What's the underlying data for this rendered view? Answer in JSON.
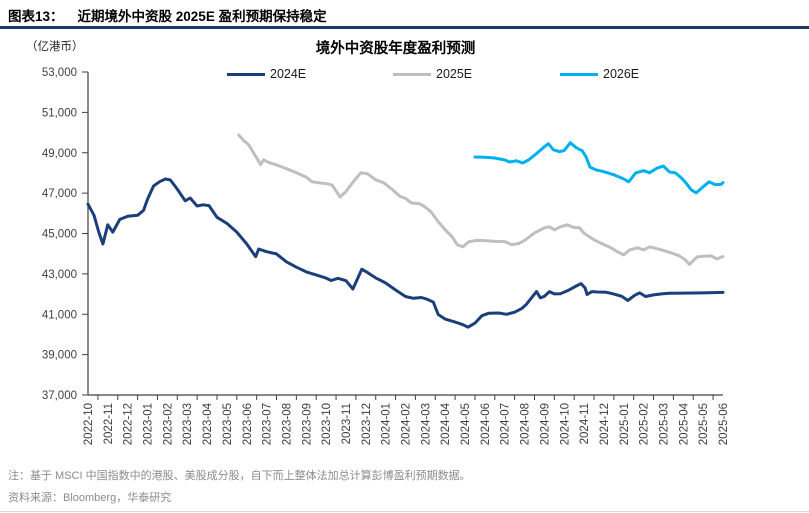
{
  "header": {
    "figure_label": "图表13：",
    "title": "近期境外中资股 2025E 盈利预期保持稳定"
  },
  "chart_data": {
    "type": "line",
    "title": "境外中资股年度盈利预测",
    "unit_label": "（亿港币）",
    "ylim": [
      37000,
      53000
    ],
    "y_ticks": [
      53000,
      51000,
      49000,
      47000,
      45000,
      43000,
      41000,
      39000,
      37000
    ],
    "x_labels": [
      "2022-10",
      "2022-11",
      "2022-12",
      "2023-01",
      "2023-02",
      "2023-03",
      "2023-04",
      "2023-05",
      "2023-06",
      "2023-07",
      "2023-08",
      "2023-09",
      "2023-10",
      "2023-11",
      "2023-12",
      "2024-01",
      "2024-02",
      "2024-03",
      "2024-04",
      "2024-05",
      "2024-06",
      "2024-07",
      "2024-08",
      "2024-09",
      "2024-10",
      "2024-11",
      "2024-12",
      "2025-01",
      "2025-02",
      "2025-03",
      "2025-04",
      "2025-05",
      "2025-06"
    ],
    "legend_position": "top",
    "grid": false,
    "axis_color": "#404040",
    "series": [
      {
        "name": "2024E",
        "color": "#1B3F7A",
        "points": [
          [
            0,
            46450
          ],
          [
            0.3,
            45900
          ],
          [
            0.55,
            45050
          ],
          [
            0.75,
            44480
          ],
          [
            1,
            45430
          ],
          [
            1.25,
            45070
          ],
          [
            1.6,
            45700
          ],
          [
            2,
            45850
          ],
          [
            2.5,
            45900
          ],
          [
            2.8,
            46150
          ],
          [
            3,
            46700
          ],
          [
            3.3,
            47350
          ],
          [
            3.6,
            47560
          ],
          [
            3.9,
            47700
          ],
          [
            4.15,
            47650
          ],
          [
            4.5,
            47200
          ],
          [
            4.9,
            46620
          ],
          [
            5.15,
            46760
          ],
          [
            5.5,
            46360
          ],
          [
            5.8,
            46420
          ],
          [
            6.1,
            46380
          ],
          [
            6.5,
            45800
          ],
          [
            7,
            45500
          ],
          [
            7.5,
            45070
          ],
          [
            8,
            44480
          ],
          [
            8.45,
            43850
          ],
          [
            8.6,
            44230
          ],
          [
            9,
            44100
          ],
          [
            9.5,
            43990
          ],
          [
            10,
            43600
          ],
          [
            10.5,
            43330
          ],
          [
            11,
            43100
          ],
          [
            11.5,
            42950
          ],
          [
            12,
            42790
          ],
          [
            12.25,
            42670
          ],
          [
            12.6,
            42780
          ],
          [
            13,
            42660
          ],
          [
            13.35,
            42250
          ],
          [
            13.8,
            43230
          ],
          [
            14.1,
            43060
          ],
          [
            14.5,
            42800
          ],
          [
            15,
            42550
          ],
          [
            15.5,
            42200
          ],
          [
            16,
            41880
          ],
          [
            16.4,
            41790
          ],
          [
            16.8,
            41830
          ],
          [
            17.1,
            41740
          ],
          [
            17.4,
            41600
          ],
          [
            17.65,
            40990
          ],
          [
            18,
            40760
          ],
          [
            18.5,
            40610
          ],
          [
            18.9,
            40480
          ],
          [
            19.15,
            40360
          ],
          [
            19.5,
            40560
          ],
          [
            19.85,
            40930
          ],
          [
            20.2,
            41050
          ],
          [
            20.7,
            41060
          ],
          [
            21.1,
            41000
          ],
          [
            21.5,
            41100
          ],
          [
            21.85,
            41280
          ],
          [
            22.1,
            41500
          ],
          [
            22.45,
            41940
          ],
          [
            22.6,
            42120
          ],
          [
            22.8,
            41810
          ],
          [
            23,
            41890
          ],
          [
            23.25,
            42120
          ],
          [
            23.5,
            42010
          ],
          [
            23.8,
            42020
          ],
          [
            24.2,
            42180
          ],
          [
            24.6,
            42400
          ],
          [
            24.85,
            42520
          ],
          [
            25.05,
            42300
          ],
          [
            25.15,
            41980
          ],
          [
            25.4,
            42120
          ],
          [
            25.7,
            42100
          ],
          [
            26.1,
            42090
          ],
          [
            26.5,
            42000
          ],
          [
            26.9,
            41890
          ],
          [
            27.2,
            41680
          ],
          [
            27.55,
            41940
          ],
          [
            27.8,
            42060
          ],
          [
            28.1,
            41880
          ],
          [
            28.5,
            41960
          ],
          [
            28.9,
            42010
          ],
          [
            29.3,
            42040
          ],
          [
            30,
            42050
          ],
          [
            31,
            42060
          ],
          [
            32,
            42080
          ]
        ]
      },
      {
        "name": "2025E",
        "color": "#BFBFBF",
        "points": [
          [
            7.6,
            49880
          ],
          [
            7.85,
            49600
          ],
          [
            8.1,
            49400
          ],
          [
            8.4,
            48900
          ],
          [
            8.7,
            48420
          ],
          [
            8.85,
            48650
          ],
          [
            9.1,
            48520
          ],
          [
            9.5,
            48400
          ],
          [
            10,
            48210
          ],
          [
            10.5,
            48010
          ],
          [
            11,
            47790
          ],
          [
            11.3,
            47560
          ],
          [
            11.7,
            47500
          ],
          [
            12,
            47470
          ],
          [
            12.3,
            47400
          ],
          [
            12.7,
            46810
          ],
          [
            13,
            47080
          ],
          [
            13.4,
            47600
          ],
          [
            13.75,
            48010
          ],
          [
            14.1,
            47950
          ],
          [
            14.5,
            47660
          ],
          [
            14.9,
            47510
          ],
          [
            15.3,
            47210
          ],
          [
            15.7,
            46860
          ],
          [
            16,
            46740
          ],
          [
            16.3,
            46510
          ],
          [
            16.7,
            46480
          ],
          [
            17,
            46310
          ],
          [
            17.3,
            46060
          ],
          [
            17.6,
            45640
          ],
          [
            18,
            45180
          ],
          [
            18.35,
            44840
          ],
          [
            18.6,
            44450
          ],
          [
            18.9,
            44340
          ],
          [
            19.2,
            44600
          ],
          [
            19.6,
            44660
          ],
          [
            20,
            44650
          ],
          [
            20.5,
            44610
          ],
          [
            21,
            44600
          ],
          [
            21.35,
            44450
          ],
          [
            21.7,
            44500
          ],
          [
            22,
            44660
          ],
          [
            22.5,
            45030
          ],
          [
            23,
            45280
          ],
          [
            23.25,
            45330
          ],
          [
            23.5,
            45180
          ],
          [
            23.8,
            45330
          ],
          [
            24.15,
            45430
          ],
          [
            24.5,
            45290
          ],
          [
            24.75,
            45290
          ],
          [
            25,
            45010
          ],
          [
            25.5,
            44690
          ],
          [
            26,
            44450
          ],
          [
            26.35,
            44290
          ],
          [
            26.7,
            44090
          ],
          [
            27,
            43940
          ],
          [
            27.3,
            44190
          ],
          [
            27.7,
            44290
          ],
          [
            28,
            44190
          ],
          [
            28.3,
            44340
          ],
          [
            28.7,
            44240
          ],
          [
            29,
            44160
          ],
          [
            29.4,
            44040
          ],
          [
            29.8,
            43890
          ],
          [
            30.1,
            43690
          ],
          [
            30.3,
            43470
          ],
          [
            30.7,
            43840
          ],
          [
            31.1,
            43880
          ],
          [
            31.4,
            43890
          ],
          [
            31.7,
            43740
          ],
          [
            32,
            43860
          ]
        ]
      },
      {
        "name": "2026E",
        "color": "#00B0F0",
        "points": [
          [
            19.5,
            48790
          ],
          [
            20,
            48780
          ],
          [
            20.5,
            48740
          ],
          [
            21,
            48640
          ],
          [
            21.25,
            48540
          ],
          [
            21.6,
            48600
          ],
          [
            21.9,
            48490
          ],
          [
            22.2,
            48640
          ],
          [
            22.6,
            48960
          ],
          [
            23,
            49300
          ],
          [
            23.2,
            49450
          ],
          [
            23.45,
            49150
          ],
          [
            23.75,
            49050
          ],
          [
            24,
            49110
          ],
          [
            24.3,
            49500
          ],
          [
            24.6,
            49250
          ],
          [
            24.9,
            49100
          ],
          [
            25.1,
            48800
          ],
          [
            25.3,
            48290
          ],
          [
            25.6,
            48150
          ],
          [
            26,
            48060
          ],
          [
            26.5,
            47910
          ],
          [
            27,
            47700
          ],
          [
            27.25,
            47560
          ],
          [
            27.6,
            48000
          ],
          [
            28,
            48110
          ],
          [
            28.3,
            48010
          ],
          [
            28.7,
            48250
          ],
          [
            29,
            48340
          ],
          [
            29.3,
            48050
          ],
          [
            29.6,
            48000
          ],
          [
            29.9,
            47760
          ],
          [
            30.15,
            47480
          ],
          [
            30.4,
            47160
          ],
          [
            30.65,
            47010
          ],
          [
            31,
            47320
          ],
          [
            31.3,
            47560
          ],
          [
            31.6,
            47420
          ],
          [
            31.9,
            47430
          ],
          [
            32,
            47520
          ]
        ]
      }
    ]
  },
  "footer": {
    "note": "注：基于 MSCI 中国指数中的港股、美股成分股，自下而上整体法加总计算彭博盈利预期数据。",
    "source": "资料来源：Bloomberg，华泰研究"
  }
}
